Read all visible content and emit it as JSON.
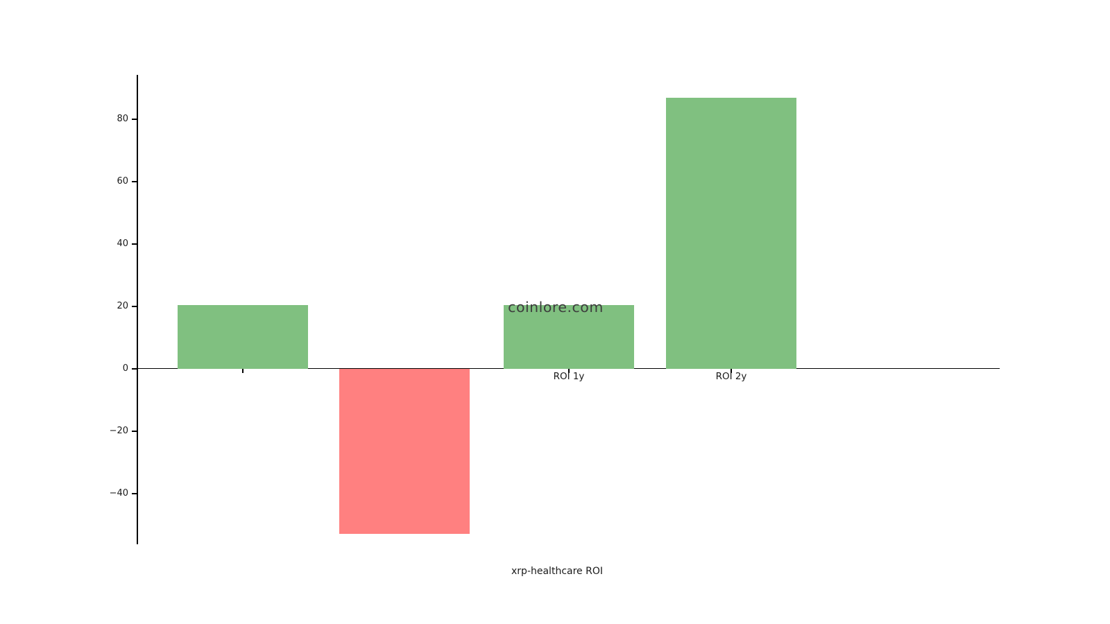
{
  "chart_data": {
    "type": "bar",
    "categories": [
      "",
      "",
      "ROI 1y",
      "ROI 2y"
    ],
    "values": [
      20.4,
      -52.9,
      20.4,
      86.9
    ],
    "bar_colors": [
      "#80c080",
      "#ff8080",
      "#80c080",
      "#80c080"
    ],
    "title": "xrp-healthcare ROI",
    "xlabel": "",
    "ylabel": "",
    "y_ticks": [
      80,
      60,
      40,
      20,
      0,
      -20,
      -40
    ],
    "ylim": [
      -56,
      94
    ],
    "grid": false,
    "legend": "none",
    "watermark": "coinlore.com"
  },
  "colors": {
    "positive_bar": "#80c080",
    "negative_bar": "#ff8080",
    "axis": "#000000",
    "tick_label": "#1a1a1a",
    "watermark_text": "#3d3d3d",
    "background": "#ffffff"
  }
}
